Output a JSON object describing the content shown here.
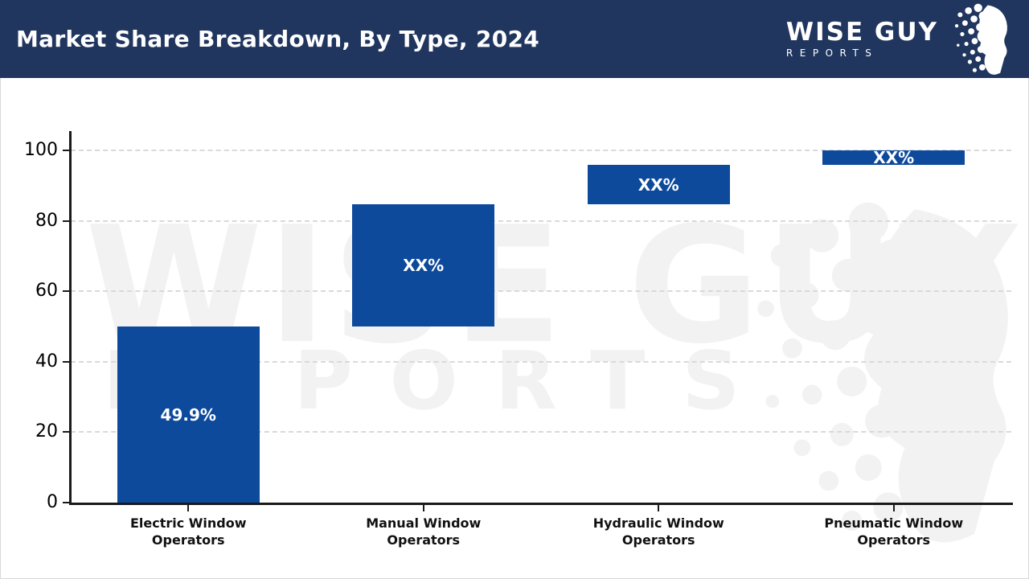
{
  "header": {
    "title": "Market Share Breakdown, By Type, 2024",
    "logo": {
      "line1": "WISE GUY",
      "line2": "REPORTS"
    }
  },
  "watermark": {
    "line1": "WISE GUY",
    "line2": "REPORTS"
  },
  "chart_data": {
    "type": "bar",
    "subtype": "floating-segment-waterfall",
    "title": "Market Share Breakdown, By Type, 2024",
    "categories": [
      "Electric Window Operators",
      "Manual Window Operators",
      "Hydraulic Window Operators",
      "Pneumatic Window Operators"
    ],
    "category_lines": [
      [
        "Electric Window",
        "Operators"
      ],
      [
        "Manual Window",
        "Operators"
      ],
      [
        "Hydraulic Window",
        "Operators"
      ],
      [
        "Pneumatic Window",
        "Operators"
      ]
    ],
    "segments": [
      {
        "category": "Electric Window Operators",
        "start": 0,
        "end": 49.9,
        "label": "49.9%"
      },
      {
        "category": "Manual Window Operators",
        "start": 49.9,
        "end": 84.6,
        "label": "XX%"
      },
      {
        "category": "Hydraulic Window Operators",
        "start": 84.6,
        "end": 95.8,
        "label": "XX%"
      },
      {
        "category": "Pneumatic Window Operators",
        "start": 95.8,
        "end": 100,
        "label": "XX%"
      }
    ],
    "xlabel": "",
    "ylabel": "",
    "ylim": [
      0,
      100
    ],
    "yticks": [
      0,
      20,
      40,
      60,
      80,
      100
    ],
    "grid": "horizontal-dashed",
    "legend": "none",
    "colors": {
      "bar": "#0d4a9c",
      "bar_label": "#ffffff",
      "axis": "#1a1a1a",
      "gridline": "#d9d9d9",
      "tick_label": "#000000",
      "header_bg": "#21365f",
      "header_text": "#ffffff",
      "watermark": "#f2f2f2"
    }
  }
}
